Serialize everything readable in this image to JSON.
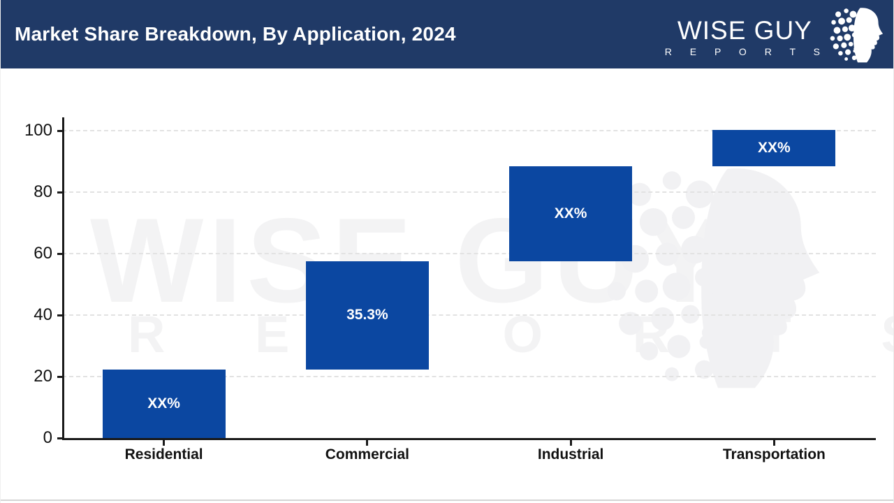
{
  "header": {
    "title": "Market Share Breakdown, By Application, 2024",
    "bg_color": "#203a67",
    "logo": {
      "line1": "WISE GUY",
      "line2": "R E P O R T S"
    }
  },
  "watermark": {
    "line1": "WISE GUY",
    "line2": "R E P O R T S"
  },
  "chart_data": {
    "type": "bar",
    "subtype": "floating-segment-waterfall",
    "title": "Market Share Breakdown, By Application, 2024",
    "xlabel": "",
    "ylabel": "",
    "categories": [
      "Residential",
      "Commercial",
      "Industrial",
      "Transportation"
    ],
    "segments": [
      [
        0,
        22.3
      ],
      [
        22.3,
        57.6
      ],
      [
        57.6,
        88.5
      ],
      [
        88.5,
        100.2
      ]
    ],
    "bar_labels": [
      "XX%",
      "35.3%",
      "XX%",
      "XX%"
    ],
    "yticks": [
      0,
      20,
      40,
      60,
      80,
      100
    ],
    "ylim": [
      0,
      100
    ],
    "grid": "horizontal-dashed",
    "legend": "none",
    "bar_color": "#0b47a1",
    "bar_label_color": "#ffffff",
    "axis_color": "#1a1a1a",
    "gridline_color": "#e2e2e2"
  }
}
